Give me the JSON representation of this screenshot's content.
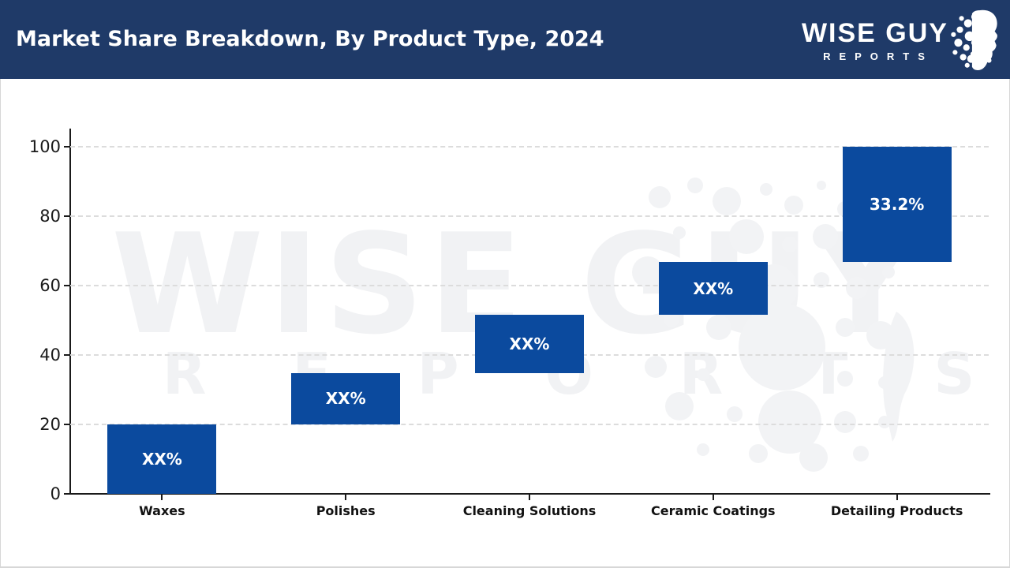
{
  "header": {
    "title": "Market Share Breakdown, By Product Type, 2024",
    "logo": {
      "line1": "WISE GUY",
      "line2": "REPORTS"
    }
  },
  "watermark": {
    "line1": "WISE GUY",
    "line2": "R E P O R T S"
  },
  "colors": {
    "header_bg": "#1f3a68",
    "bar": "#0b4a9e",
    "grid": "#dcdcdc",
    "axis": "#1a1a1a",
    "watermark": "#f1f2f4",
    "bar_label": "#ffffff"
  },
  "chart_data": {
    "type": "bar",
    "subtype": "waterfall",
    "title": "Market Share Breakdown, By Product Type, 2024",
    "categories": [
      "Waxes",
      "Polishes",
      "Cleaning Solutions",
      "Ceramic Coatings",
      "Detailing Products"
    ],
    "series": [
      {
        "name": "Waxes",
        "start": 0,
        "end": 20.0,
        "value_label": "XX%"
      },
      {
        "name": "Polishes",
        "start": 20.0,
        "end": 34.8,
        "value_label": "XX%"
      },
      {
        "name": "Cleaning Solutions",
        "start": 34.8,
        "end": 51.6,
        "value_label": "XX%"
      },
      {
        "name": "Ceramic Coatings",
        "start": 51.6,
        "end": 66.8,
        "value_label": "XX%"
      },
      {
        "name": "Detailing Products",
        "start": 66.8,
        "end": 100,
        "value_label": "33.2%"
      }
    ],
    "ylim": [
      0,
      100
    ],
    "yticks": [
      0,
      20,
      40,
      60,
      80,
      100
    ],
    "xlabel": "",
    "ylabel": "",
    "grid": "horizontal dashed, behind bars",
    "legend": "none",
    "bar_color": "#0b4a9e"
  }
}
